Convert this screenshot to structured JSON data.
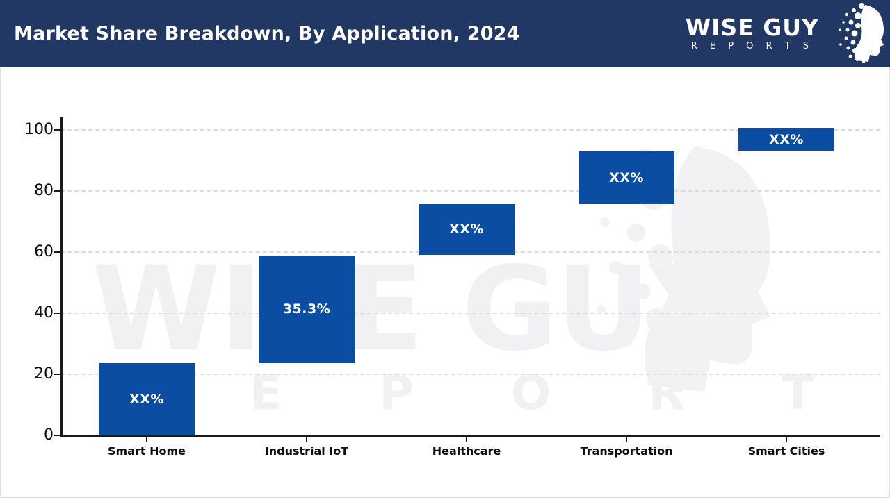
{
  "header": {
    "title": "Market Share Breakdown, By Application, 2024",
    "background_color": "#213764",
    "logo": {
      "line1": "WISE GUY",
      "line2": "R E P O R T S"
    }
  },
  "watermark": {
    "line1": "WISE GUY",
    "line2": "R E P O R T S"
  },
  "chart_data": {
    "type": "bar",
    "subtype": "waterfall",
    "title": "Market Share Breakdown, By Application, 2024",
    "xlabel": "",
    "ylabel": "",
    "categories": [
      "Smart Home",
      "Industrial IoT",
      "Healthcare",
      "Transportation",
      "Smart Cities"
    ],
    "segments": [
      {
        "category": "Smart Home",
        "start": 0,
        "end": 23.6,
        "label": "XX%"
      },
      {
        "category": "Industrial IoT",
        "start": 23.6,
        "end": 58.9,
        "label": "35.3%"
      },
      {
        "category": "Healthcare",
        "start": 59.1,
        "end": 75.7,
        "label": "XX%"
      },
      {
        "category": "Transportation",
        "start": 75.7,
        "end": 93.0,
        "label": "XX%"
      },
      {
        "category": "Smart Cities",
        "start": 93.2,
        "end": 100.5,
        "label": "XX%"
      }
    ],
    "yticks": [
      0,
      20,
      40,
      60,
      80,
      100
    ],
    "ylim": [
      0,
      105
    ],
    "grid": "horizontal-dashed",
    "legend": "none",
    "bar_color": "#0b4da2",
    "bar_label_color": "#ffffff",
    "axis_color": "#1a1a1a",
    "gridline_color": "#dcdcdc"
  }
}
